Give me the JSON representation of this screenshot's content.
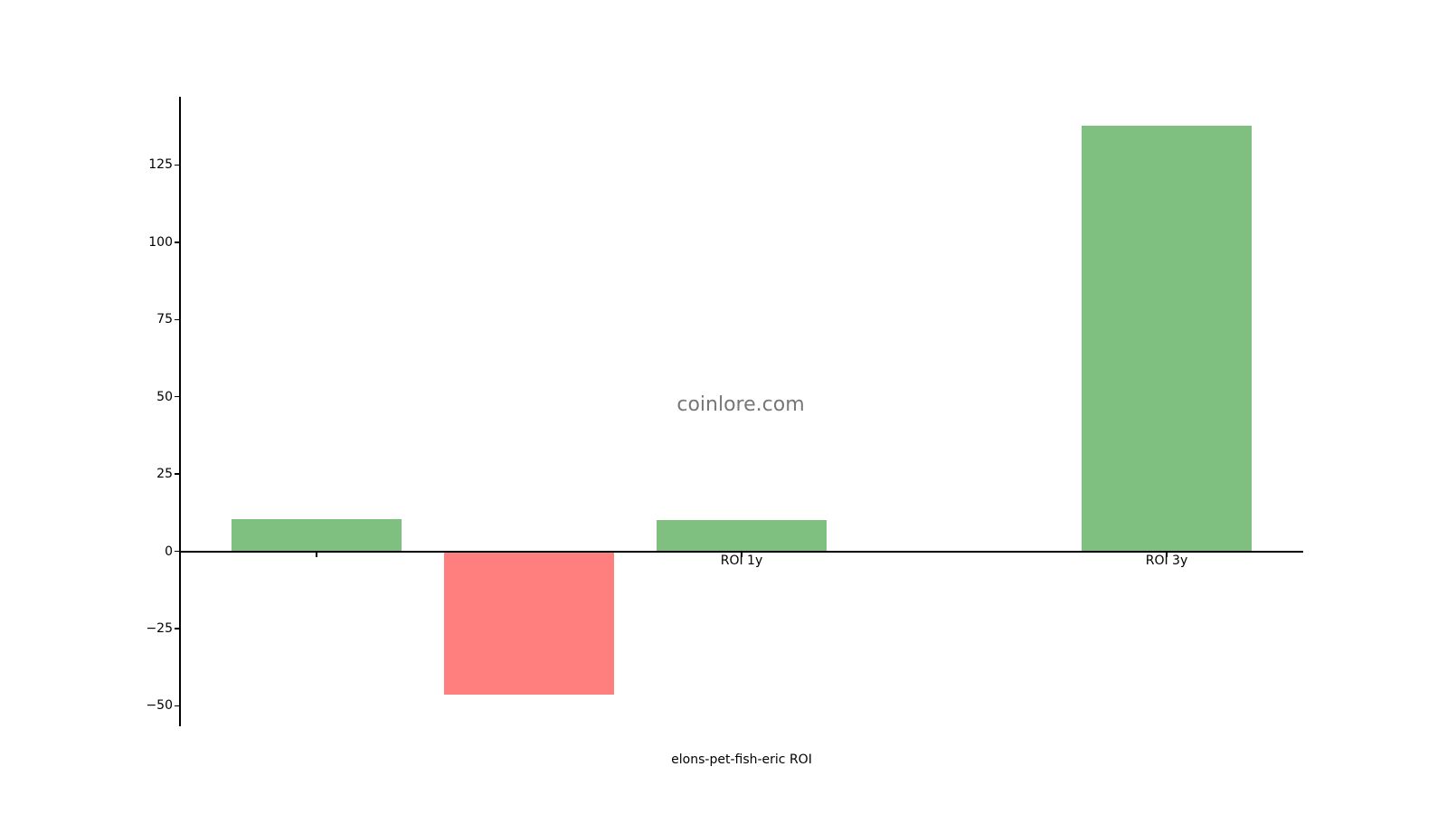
{
  "chart": {
    "watermark": "coinlore.com"
  },
  "chart_data": {
    "type": "bar",
    "title": "",
    "xlabel": "elons-pet-fish-eric ROI",
    "ylabel": "",
    "categories": [
      "",
      "",
      "ROI 1y",
      "",
      "ROI 3y"
    ],
    "values": [
      10.4,
      -46.5,
      10.2,
      null,
      137.6
    ],
    "y_ticks": [
      125,
      100,
      75,
      50,
      25,
      0,
      -25,
      -50
    ],
    "x_tick_slots": [
      0,
      2,
      4
    ],
    "ylim": [
      -56.5,
      147.2
    ],
    "grid": false,
    "legend": false,
    "colors": {
      "positive": "#7fbf7f",
      "negative": "#ff7f7f",
      "axis": "#000000",
      "watermark": "#777777"
    }
  }
}
